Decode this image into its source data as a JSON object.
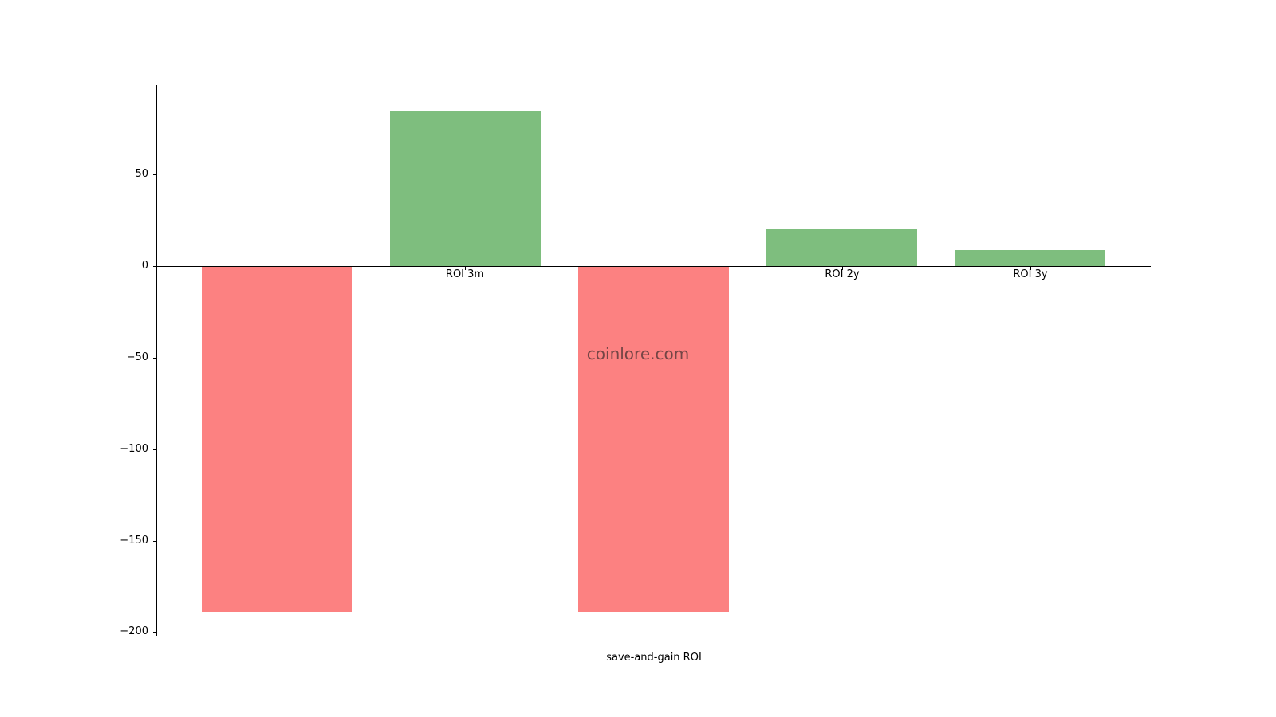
{
  "figure": {
    "background": "#ffffff"
  },
  "chart_data": {
    "type": "bar",
    "title": "",
    "xlabel": "save-and-gain ROI",
    "ylabel": "",
    "categories": [
      "",
      "ROI 3m",
      "",
      "ROI 2y",
      "ROI 3y"
    ],
    "values": [
      -189,
      85,
      -189,
      20,
      9
    ],
    "bar_colors": [
      "#fc8181",
      "#7ebe7e",
      "#fc8181",
      "#7ebe7e",
      "#7ebe7e"
    ],
    "positive_color": "#7ebe7e",
    "negative_color": "#fc8181",
    "axis_color": "#000000",
    "watermark": "coinlore.com",
    "y_ticks": [
      {
        "value": 50,
        "label": "50"
      },
      {
        "value": 0,
        "label": "0"
      },
      {
        "value": -50,
        "label": "−50"
      },
      {
        "value": -100,
        "label": "−100"
      },
      {
        "value": -150,
        "label": "−150"
      },
      {
        "value": -200,
        "label": "−200"
      }
    ],
    "ylim": [
      -202,
      99
    ],
    "xlim": [
      -0.64,
      4.64
    ],
    "bar_width_units": 0.8,
    "grid": false,
    "legend": null
  }
}
